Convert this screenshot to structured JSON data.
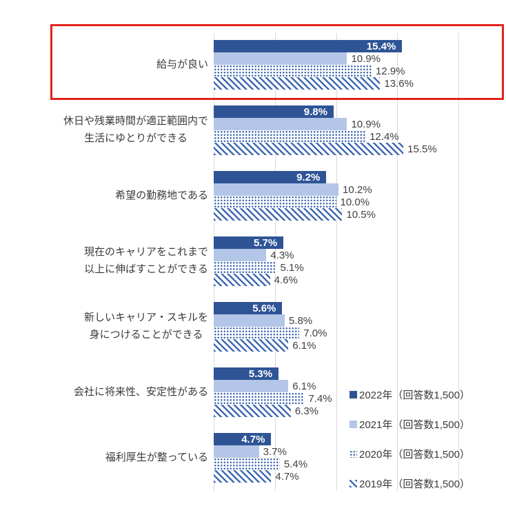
{
  "colors": {
    "dark": "#2F5496",
    "light": "#B4C6E7",
    "pattern": "#3E68B1",
    "grid": "#D9D9D9",
    "labelgray": "#404040",
    "text": "#3A3A3A",
    "inbar": "#FFFFFF",
    "red": "#E2231A"
  },
  "highlight_note": "red box around first category group",
  "chart_data": {
    "type": "bar",
    "orientation": "horizontal",
    "title": "",
    "xlabel": "",
    "ylabel": "",
    "xlim": [
      0,
      20
    ],
    "gridline_step_percent": 5,
    "grid": true,
    "legend_position": "bottom-right",
    "value_label_format": "#.#%",
    "categories": [
      "給与が良い",
      "休日や残業時間が適正範囲内で\n生活にゆとりができる",
      "希望の勤務地である",
      "現在のキャリアをこれまで\n以上に伸ばすことができる",
      "新しいキャリア・スキルを\n身につけることができる",
      "会社に将来性、安定性がある",
      "福利厚生が整っている"
    ],
    "series": [
      {
        "year": "2022",
        "name": "2022年（回答数1,500）",
        "style": "solid-dark",
        "values": [
          15.4,
          9.8,
          9.2,
          5.7,
          5.6,
          5.3,
          4.7
        ]
      },
      {
        "year": "2021",
        "name": "2021年（回答数1,500）",
        "style": "solid-light",
        "values": [
          10.9,
          10.9,
          10.2,
          4.3,
          5.8,
          6.1,
          3.7
        ]
      },
      {
        "year": "2020",
        "name": "2020年（回答数1,500）",
        "style": "dotted",
        "values": [
          12.9,
          12.4,
          10.0,
          5.1,
          7.0,
          7.4,
          5.4
        ]
      },
      {
        "year": "2019",
        "name": "2019年（回答数1,500）",
        "style": "diagonal-hatch",
        "values": [
          13.6,
          15.5,
          10.5,
          4.6,
          6.1,
          6.3,
          4.7
        ]
      }
    ]
  }
}
